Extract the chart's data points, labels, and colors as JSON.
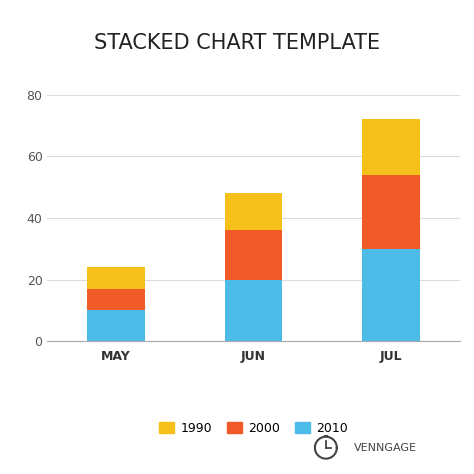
{
  "title": "STACKED CHART TEMPLATE",
  "categories": [
    "MAY",
    "JUN",
    "JUL"
  ],
  "series": {
    "2010": [
      10,
      20,
      30
    ],
    "2000": [
      7,
      16,
      24
    ],
    "1990": [
      7,
      12,
      18
    ]
  },
  "colors": {
    "2010": "#4DBBE8",
    "2000": "#F05A28",
    "1990": "#F5C01A"
  },
  "ylim": [
    0,
    80
  ],
  "yticks": [
    0,
    20,
    40,
    60,
    80
  ],
  "outer_background": "#FFFFFF",
  "chart_panel_background": "#EBEBEB",
  "chart_background": "#FFFFFF",
  "bar_width": 0.42,
  "title_fontsize": 15,
  "tick_fontsize": 9,
  "legend_fontsize": 9,
  "legend_order": [
    "1990",
    "2000",
    "2010"
  ]
}
